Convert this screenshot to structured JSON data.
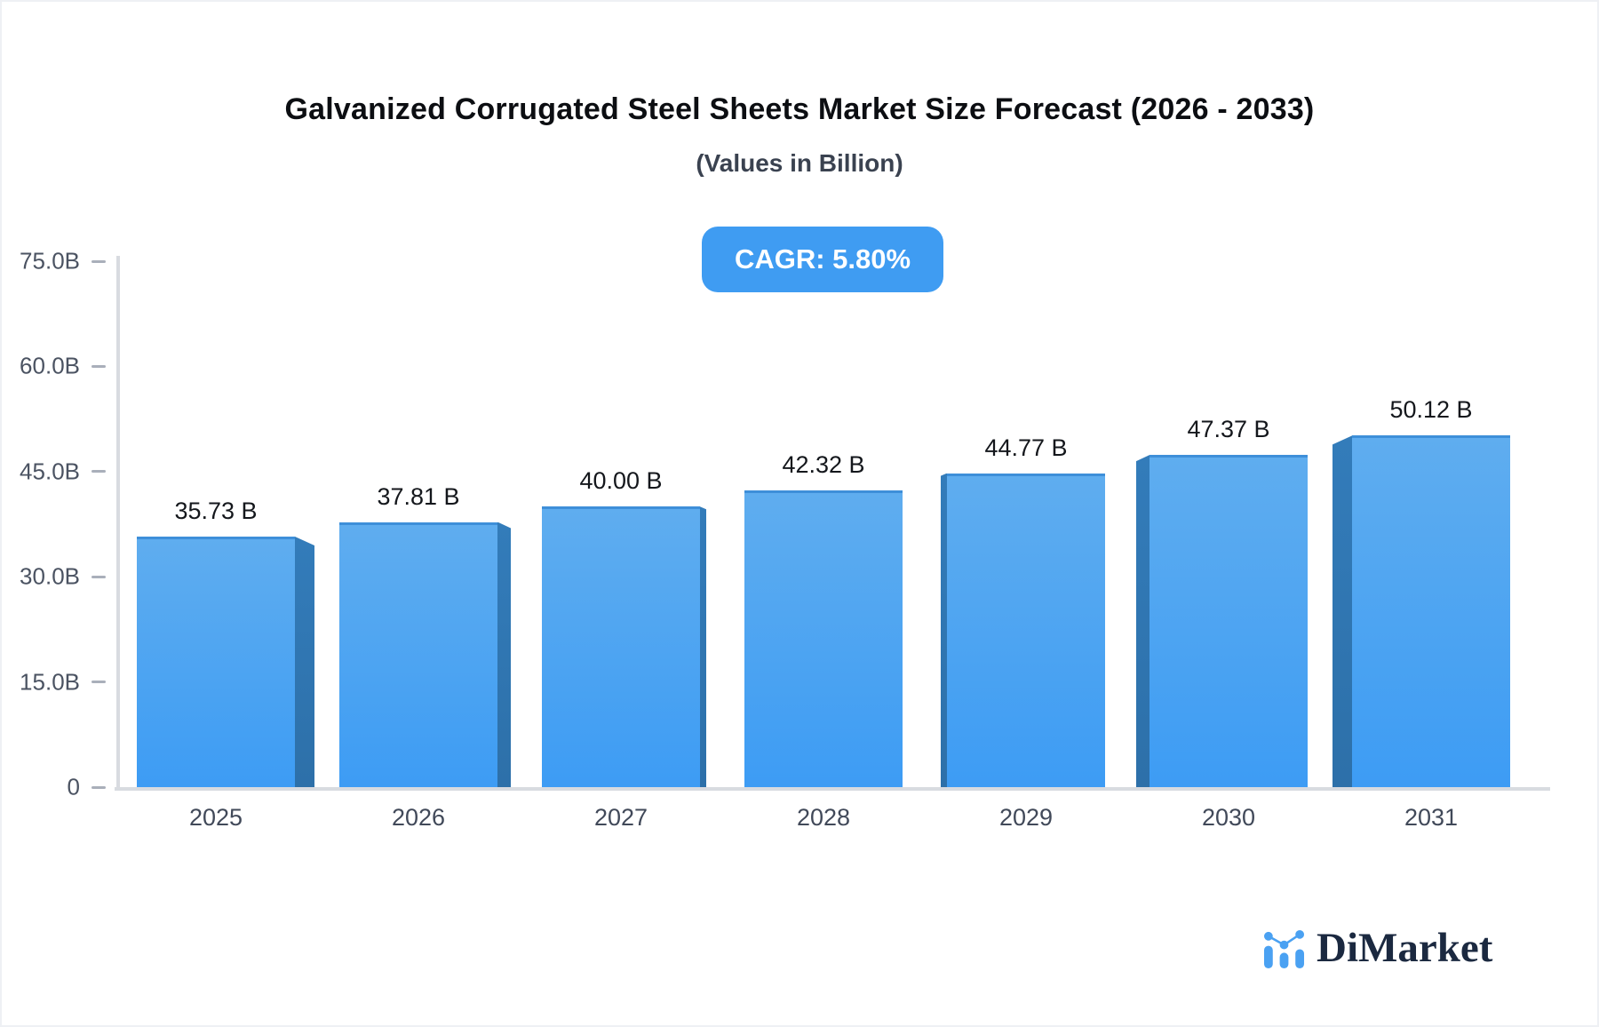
{
  "title": "Galvanized Corrugated Steel Sheets Market Size Forecast (2026 - 2033)",
  "subtitle": "(Values in Billion)",
  "badge": {
    "label": "CAGR: 5.80%",
    "bg_color": "#3f9cf2",
    "text_color": "#ffffff"
  },
  "chart_data": {
    "type": "bar",
    "title": "Galvanized Corrugated Steel Sheets Market Size Forecast (2026 - 2033)",
    "subtitle": "(Values in Billion)",
    "categories": [
      "2025",
      "2026",
      "2027",
      "2028",
      "2029",
      "2030",
      "2031"
    ],
    "values": [
      35.73,
      37.81,
      40.0,
      42.32,
      44.77,
      47.37,
      50.12
    ],
    "value_labels": [
      "35.73 B",
      "37.81 B",
      "40.00 B",
      "42.32 B",
      "44.77 B",
      "47.37 B",
      "50.12 B"
    ],
    "y_ticks": [
      "75.0B",
      "60.0B",
      "45.0B",
      "30.0B",
      "15.0B",
      "0"
    ],
    "y_tick_values": [
      75,
      60,
      45,
      30,
      15,
      0
    ],
    "ylim": [
      0,
      75
    ],
    "xlabel": "",
    "ylabel": "",
    "grid": false,
    "legend": "none",
    "style": "3d-perspective-bars",
    "colors": {
      "bar_face_top": "#5fadef",
      "bar_face_bottom": "#3d9cf4",
      "bar_top_edge": "#3e8fd9",
      "bar_side_top": "#337cba",
      "bar_side_bottom": "#2d70a9",
      "axis": "#d8dbe0",
      "tick_dash": "#a9afba",
      "tick_text": "#4b5362"
    }
  },
  "logo": {
    "text": "DiMarket",
    "icon": "bar-line-chart-icon",
    "text_color": "#1b2940",
    "icon_color": "#4aa1f2"
  }
}
